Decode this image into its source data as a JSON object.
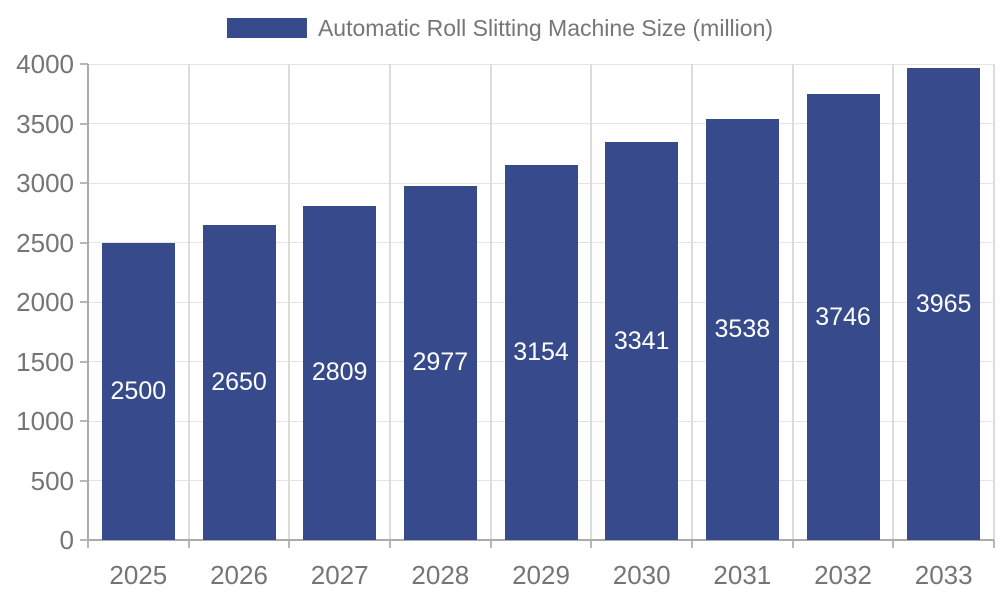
{
  "legend": {
    "label": "Automatic Roll Slitting Machine Size (million)"
  },
  "chart_data": {
    "type": "bar",
    "title": "",
    "xlabel": "",
    "ylabel": "",
    "categories": [
      "2025",
      "2026",
      "2027",
      "2028",
      "2029",
      "2030",
      "2031",
      "2032",
      "2033"
    ],
    "values": [
      2500,
      2650,
      2809,
      2977,
      3154,
      3341,
      3538,
      3746,
      3965
    ],
    "series": [
      {
        "name": "Automatic Roll Slitting Machine Size (million)",
        "values": [
          2500,
          2650,
          2809,
          2977,
          3154,
          3341,
          3538,
          3746,
          3965
        ]
      }
    ],
    "yticks": [
      "0",
      "500",
      "1000",
      "1500",
      "2000",
      "2500",
      "3000",
      "3500",
      "4000"
    ],
    "ylim": [
      0,
      4000
    ],
    "ytick_step": 500,
    "grid": true,
    "legend_position": "top-center",
    "bar_labels_inside": true,
    "colors": {
      "bar": "#374B8C",
      "bar_label": "#ffffff",
      "grid_horizontal": "#e4e4e4",
      "grid_vertical": "#dcdcdc",
      "axis_line": "#ababab",
      "axis_tick": "#b4b7c2",
      "tick_label": "#757575",
      "legend_text": "#767676",
      "background": "#ffffff"
    }
  }
}
